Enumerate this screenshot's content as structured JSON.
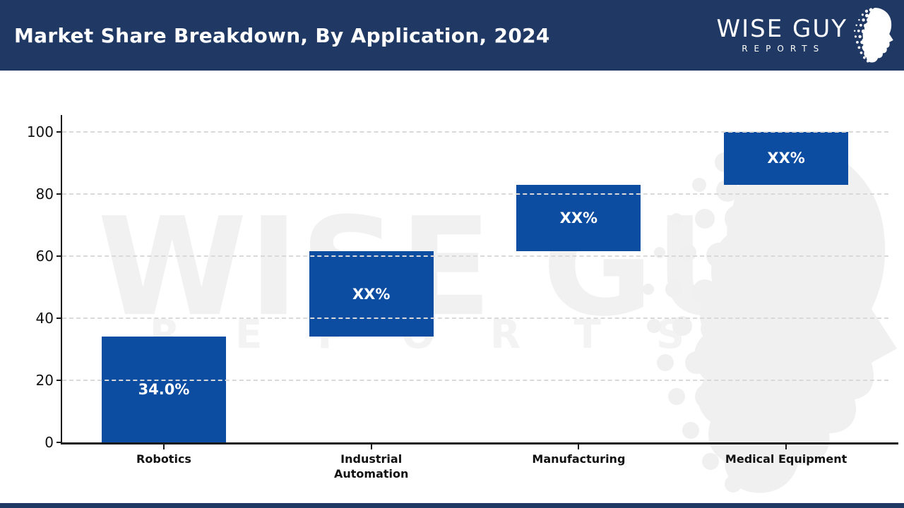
{
  "header": {
    "title": "Market Share Breakdown, By Application, 2024",
    "bg_color": "#203864",
    "logo": {
      "line1": "WISE GUY",
      "line2": "REPORTS"
    }
  },
  "watermark": {
    "line1": "WISE GUY",
    "line2": "REPORTS",
    "color": "#f1f1f1"
  },
  "footer": {
    "bg_color": "#203864"
  },
  "chart_data": {
    "type": "bar",
    "subtype": "waterfall-stacked-percentage",
    "title": "Market Share Breakdown, By Application, 2024",
    "categories": [
      "Robotics",
      "Industrial\nAutomation",
      "Manufacturing",
      "Medical Equipment"
    ],
    "segments": [
      {
        "category": "Robotics",
        "start": 0,
        "end": 34,
        "label": "34.0%"
      },
      {
        "category": "Industrial Automation",
        "start": 34,
        "end": 61.6,
        "label": "XX%"
      },
      {
        "category": "Manufacturing",
        "start": 61.6,
        "end": 83,
        "label": "XX%"
      },
      {
        "category": "Medical Equipment",
        "start": 83,
        "end": 100,
        "label": "XX%"
      }
    ],
    "yticks": [
      0,
      20,
      40,
      60,
      80,
      100
    ],
    "ylim": [
      0,
      105.5
    ],
    "xlabel": "",
    "ylabel": "",
    "grid": "horizontal-dashed",
    "gridline_color": "#d9d9d9",
    "bar_color": "#0c4da2",
    "bar_label_color": "#ffffff",
    "legend": "none"
  }
}
